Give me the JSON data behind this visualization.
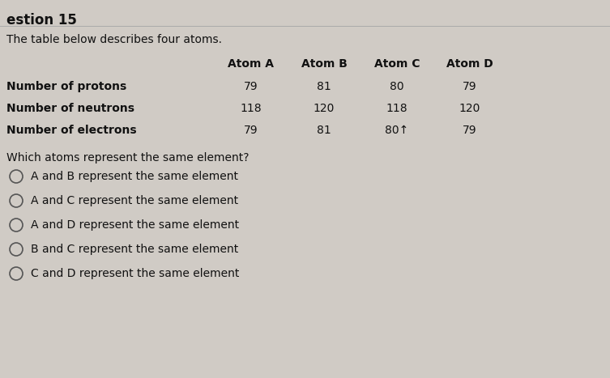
{
  "title": "estion 15",
  "subtitle": "The table below describes four atoms.",
  "bg_color": "#d0cbc5",
  "text_color": "#111111",
  "col_headers": [
    "Atom A",
    "Atom B",
    "Atom C",
    "Atom D"
  ],
  "row_labels": [
    "Number of protons",
    "Number of neutrons",
    "Number of electrons"
  ],
  "table_data": [
    [
      "79",
      "81",
      "80",
      "79"
    ],
    [
      "118",
      "120",
      "118",
      "120"
    ],
    [
      "79",
      "81",
      "80↑",
      "79"
    ]
  ],
  "question": "Which atoms represent the same element?",
  "options": [
    "A and B represent the same element",
    "A and C represent the same element",
    "A and D represent the same element",
    "B and C represent the same element",
    "C and D represent the same element"
  ],
  "figw": 7.53,
  "figh": 4.67,
  "dpi": 100
}
